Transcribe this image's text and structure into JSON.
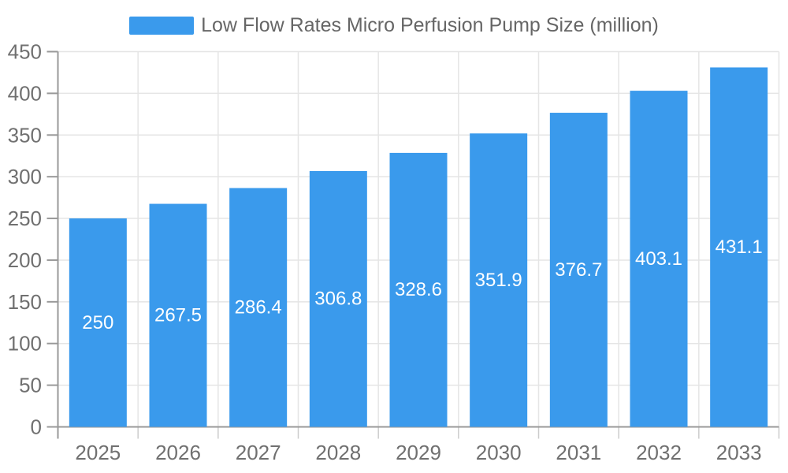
{
  "chart_data": {
    "type": "bar",
    "title": "",
    "legend": "Low Flow Rates Micro Perfusion Pump Size (million)",
    "legend_position": "top-center",
    "categories": [
      "2025",
      "2026",
      "2027",
      "2028",
      "2029",
      "2030",
      "2031",
      "2032",
      "2033"
    ],
    "values": [
      250,
      267.5,
      286.4,
      306.8,
      328.6,
      351.9,
      376.7,
      403.1,
      431.1
    ],
    "xlabel": "",
    "ylabel": "",
    "ylim": [
      0,
      450
    ],
    "ytick_step": 50,
    "grid": "horizontal-and-vertical",
    "colors": {
      "bar": "#3A9AEC",
      "bar_label_text": "#FFFFFF",
      "axis_line": "#999999",
      "tick_line": "#CCCCCC",
      "gridline": "#E5E5E5",
      "axis_label_text": "#707070",
      "legend_text": "#666666",
      "background": "#FFFFFF"
    }
  }
}
